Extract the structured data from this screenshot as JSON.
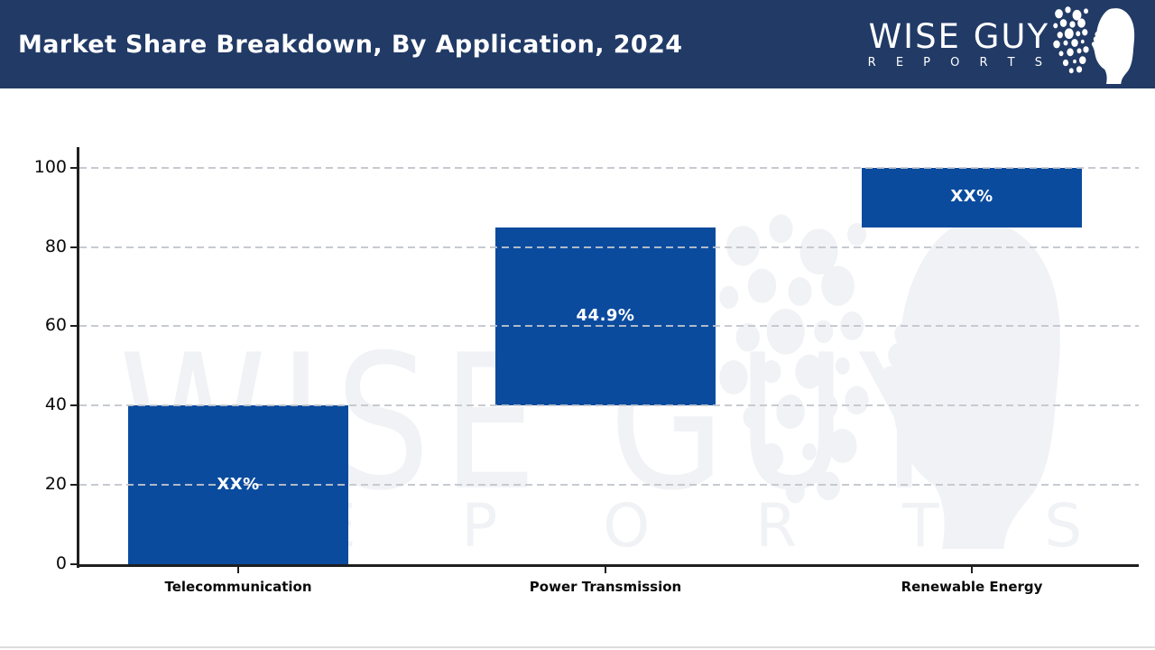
{
  "header": {
    "title": "Market Share Breakdown, By Application, 2024",
    "logo": {
      "line1": "WISE GUY",
      "line2": "R E P O R T S"
    }
  },
  "watermark": {
    "line1": "WISE GUY",
    "line2": "R E P O R T S"
  },
  "chart_data": {
    "type": "bar",
    "subtype": "waterfall-style segmented market share bars",
    "title": "Market Share Breakdown, By Application, 2024",
    "categories": [
      "Telecommunication",
      "Power Transmission",
      "Renewable Energy"
    ],
    "segments": [
      {
        "category": "Telecommunication",
        "start": 0,
        "end": 40,
        "label": "XX%"
      },
      {
        "category": "Power Transmission",
        "start": 40,
        "end": 84.9,
        "label": "44.9%"
      },
      {
        "category": "Renewable Energy",
        "start": 84.9,
        "end": 100,
        "label": "XX%"
      }
    ],
    "yticks": [
      0,
      20,
      40,
      60,
      80,
      100
    ],
    "ylim": [
      0,
      105
    ],
    "xlabel": "",
    "ylabel": "",
    "grid": "horizontal-dashed",
    "legend": false,
    "colors": {
      "bar": "#0A4B9E",
      "bar_label": "#FFFFFF",
      "header_bg": "#213A66",
      "gridline": "#C8CBD1",
      "axis": "#1F1F1F"
    }
  }
}
